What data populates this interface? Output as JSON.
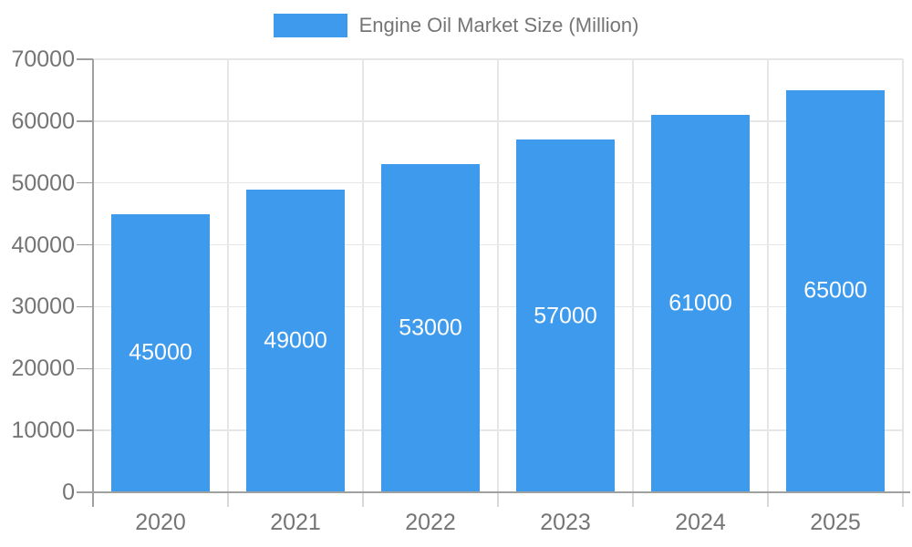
{
  "legend": {
    "label": "Engine Oil Market Size (Million)"
  },
  "colors": {
    "bar": "#3d9aec",
    "gridline": "#e6e6e6",
    "axis": "#a0a0a0",
    "y_tick": "#9e9e9e",
    "x_tick": "#d9d9d9",
    "tick_label_text": "#757575",
    "bar_label_text": "#ffffff",
    "background": "#ffffff"
  },
  "chart_data": {
    "type": "bar",
    "title": "Engine Oil Market Size (Million)",
    "categories": [
      "2020",
      "2021",
      "2022",
      "2023",
      "2024",
      "2025"
    ],
    "series": [
      {
        "name": "Engine Oil Market Size (Million)",
        "values": [
          45000,
          49000,
          53000,
          57000,
          61000,
          65000
        ]
      }
    ],
    "bar_value_labels": [
      "45000",
      "49000",
      "53000",
      "57000",
      "61000",
      "65000"
    ],
    "y_tick_labels": [
      "0",
      "10000",
      "20000",
      "30000",
      "40000",
      "50000",
      "60000",
      "70000"
    ],
    "y_tick_step": 10000,
    "ylim": [
      0,
      70000
    ],
    "xlabel": "",
    "ylabel": "",
    "grid": true,
    "legend_position": "top-center",
    "value_label_position": "inside-center"
  }
}
